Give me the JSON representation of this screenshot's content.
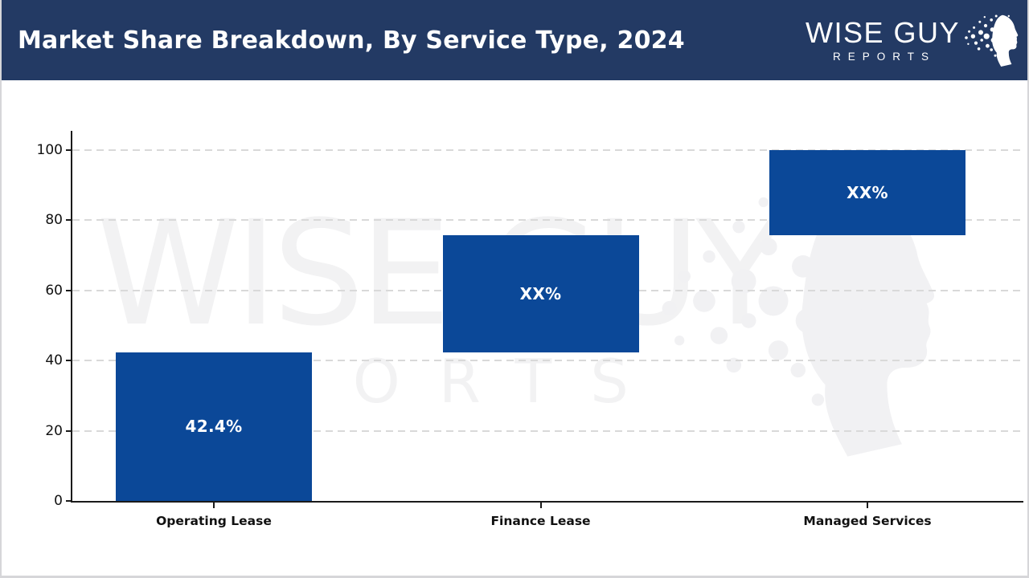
{
  "header": {
    "title": "Market Share Breakdown, By Service Type, 2024",
    "brand_line1": "WISE GUY",
    "brand_line2": "REPORTS"
  },
  "watermark": {
    "line1": "WISE GUY",
    "line2": "REPORTS"
  },
  "chart_data": {
    "type": "bar",
    "subtype": "floating-stacked-percentage",
    "title": "Market Share Breakdown, By Service Type, 2024",
    "categories": [
      "Operating Lease",
      "Finance Lease",
      "Managed Services"
    ],
    "bars": [
      {
        "category": "Operating Lease",
        "start": 0,
        "end": 42.4,
        "label": "42.4%"
      },
      {
        "category": "Finance Lease",
        "start": 42.4,
        "end": 75.8,
        "label": "XX%"
      },
      {
        "category": "Managed Services",
        "start": 75.8,
        "end": 100,
        "label": "XX%"
      }
    ],
    "yticks": [
      0,
      20,
      40,
      60,
      80,
      100
    ],
    "ylim": [
      0,
      106
    ],
    "xlabel": "",
    "ylabel": "",
    "grid": "dashed-horizontal",
    "legend": "none",
    "colors": {
      "bar": "#0b4898",
      "grid": "#d9d9d9",
      "axis": "#1a1a1a",
      "bar_label": "#ffffff",
      "header_bg": "#233a64",
      "watermark": "#f1f1f3"
    }
  }
}
